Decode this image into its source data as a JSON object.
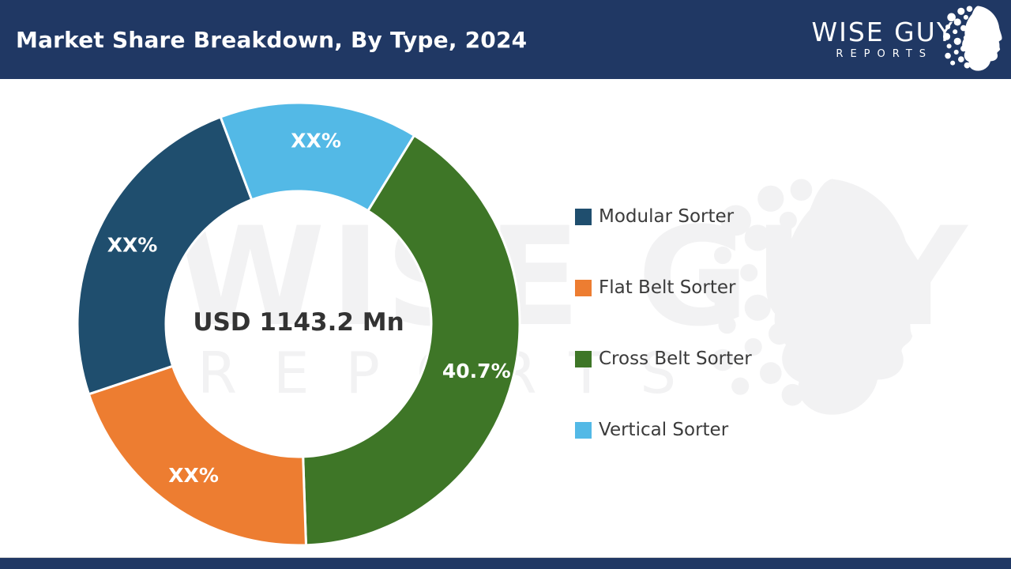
{
  "header": {
    "title": "Market Share Breakdown, By Type, 2024",
    "logo": {
      "line1": "WISE GUY",
      "line2": "REPORTS"
    }
  },
  "watermark": {
    "line1": "WISE GUY",
    "line2": "REPORTS"
  },
  "chart_data": {
    "type": "pie",
    "donut": true,
    "title": "Market Share Breakdown, By Type, 2024",
    "center_label": "USD 1143.2 Mn",
    "legend_position": "right",
    "segments": [
      {
        "label": "Modular Sorter",
        "display_value": "XX%",
        "est_pct": 24.4,
        "color": "#1f4e6e"
      },
      {
        "label": "Flat Belt Sorter",
        "display_value": "XX%",
        "est_pct": 20.4,
        "color": "#ed7d31"
      },
      {
        "label": "Cross Belt Sorter",
        "display_value": "40.7%",
        "est_pct": 40.7,
        "color": "#3e7627"
      },
      {
        "label": "Vertical Sorter",
        "display_value": "XX%",
        "est_pct": 14.5,
        "color": "#53b9e6"
      }
    ],
    "draw": {
      "start_angle_deg": 251.5,
      "order": [
        0,
        3,
        2,
        1
      ],
      "clockwise": true
    }
  },
  "colors": {
    "header_bg": "#203864",
    "footer_bg": "#203864",
    "title_text": "#ffffff",
    "logo_text": "#ffffff",
    "center_text": "#333333",
    "legend_text": "#3b3b3b",
    "slice_label": "#ffffff",
    "watermark": "#f2f2f3",
    "background": "#ffffff"
  }
}
